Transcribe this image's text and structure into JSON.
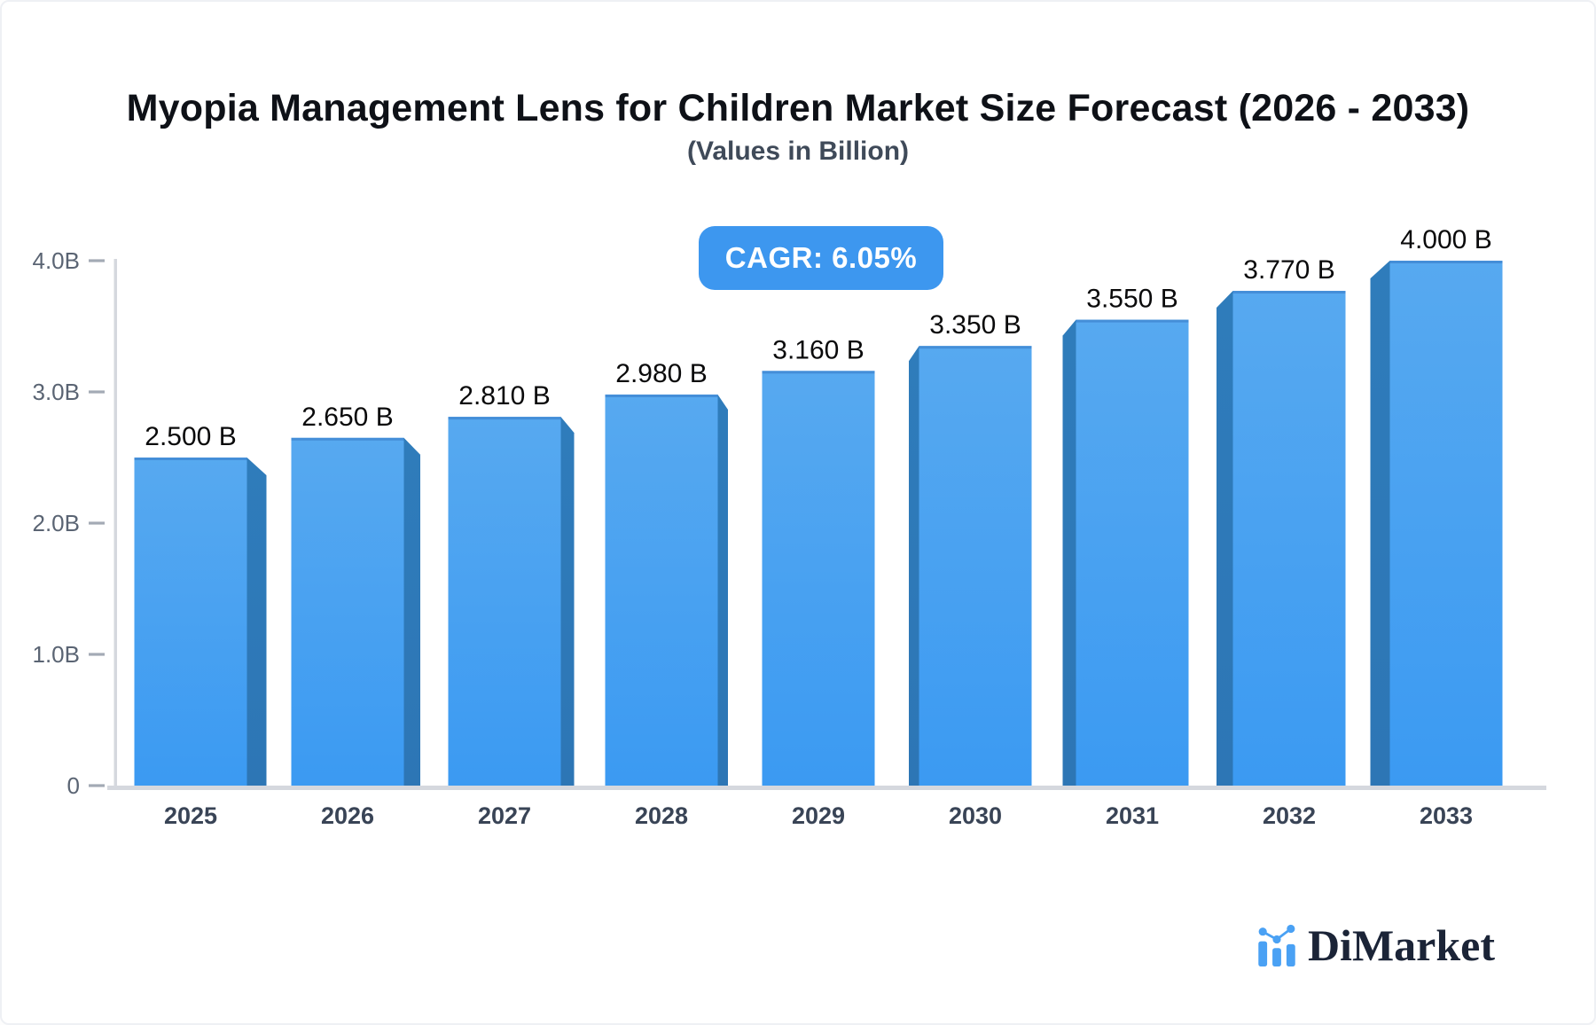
{
  "chart_data": {
    "type": "bar",
    "title": "Myopia Management Lens for Children Market Size Forecast (2026 - 2033)",
    "subtitle": "(Values in Billion)",
    "cagr_label": "CAGR: 6.05%",
    "categories": [
      "2025",
      "2026",
      "2027",
      "2028",
      "2029",
      "2030",
      "2031",
      "2032",
      "2033"
    ],
    "values": [
      2.5,
      2.65,
      2.81,
      2.98,
      3.16,
      3.35,
      3.55,
      3.77,
      4.0
    ],
    "value_labels": [
      "2.500 B",
      "2.650 B",
      "2.810 B",
      "2.980 B",
      "3.160 B",
      "3.350 B",
      "3.550 B",
      "3.770 B",
      "4.000 B"
    ],
    "unit": "Billion",
    "xlabel": "",
    "ylabel": "",
    "ylim": [
      0,
      4
    ],
    "yticks": [
      {
        "value": 4,
        "label": "4.0B"
      },
      {
        "value": 3,
        "label": "3.0B"
      },
      {
        "value": 2,
        "label": "2.0B"
      },
      {
        "value": 1,
        "label": "1.0B"
      },
      {
        "value": 0,
        "label": "0"
      }
    ],
    "grid": false,
    "legend": "none",
    "style": "3d-perspective-bars",
    "colors": {
      "bar_front_top": "#57a9f0",
      "bar_front_bottom": "#3b9af2",
      "bar_side": "#2d76b5",
      "bar_top_edge": "#4189d3",
      "axis_line": "#d5d8de",
      "tick_dash": "#a3aab5",
      "ytick_label": "#5a6473",
      "xtick_label": "#394456",
      "value_label": "#0a0a0b",
      "badge_bg": "#3d97ef",
      "badge_text": "#ffffff",
      "brand_blue": "#4aa1f4",
      "brand_text": "#1b2437"
    }
  },
  "footer": {
    "brand": "DiMarket"
  }
}
